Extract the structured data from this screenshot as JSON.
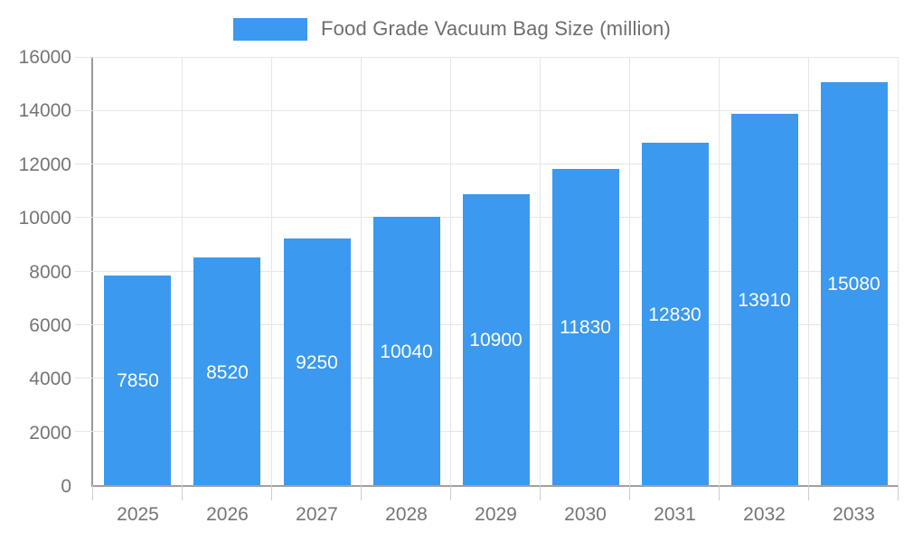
{
  "chart_data": {
    "type": "bar",
    "title": "Food Grade Vacuum Bag Size (million)",
    "categories": [
      "2025",
      "2026",
      "2027",
      "2028",
      "2029",
      "2030",
      "2031",
      "2032",
      "2033"
    ],
    "series": [
      {
        "name": "Food Grade Vacuum Bag Size (million)",
        "values": [
          7850,
          8520,
          9250,
          10040,
          10900,
          11830,
          12830,
          13910,
          15080
        ]
      }
    ],
    "value_labels_shown": true,
    "xlabel": "",
    "ylabel": "",
    "ylim": [
      0,
      16000
    ],
    "yticks": [
      0,
      2000,
      4000,
      6000,
      8000,
      10000,
      12000,
      14000,
      16000
    ],
    "grid": true,
    "legend_position": "top-center",
    "colors": {
      "bar": "#3b99ef",
      "gridline": "#e6e6e6",
      "axis_line": "#a0a0a0",
      "tick_mark": "#cccccc",
      "tick_label_text": "#757575",
      "legend_text": "#6e6e6e",
      "value_label_text": "#ffffff"
    }
  }
}
